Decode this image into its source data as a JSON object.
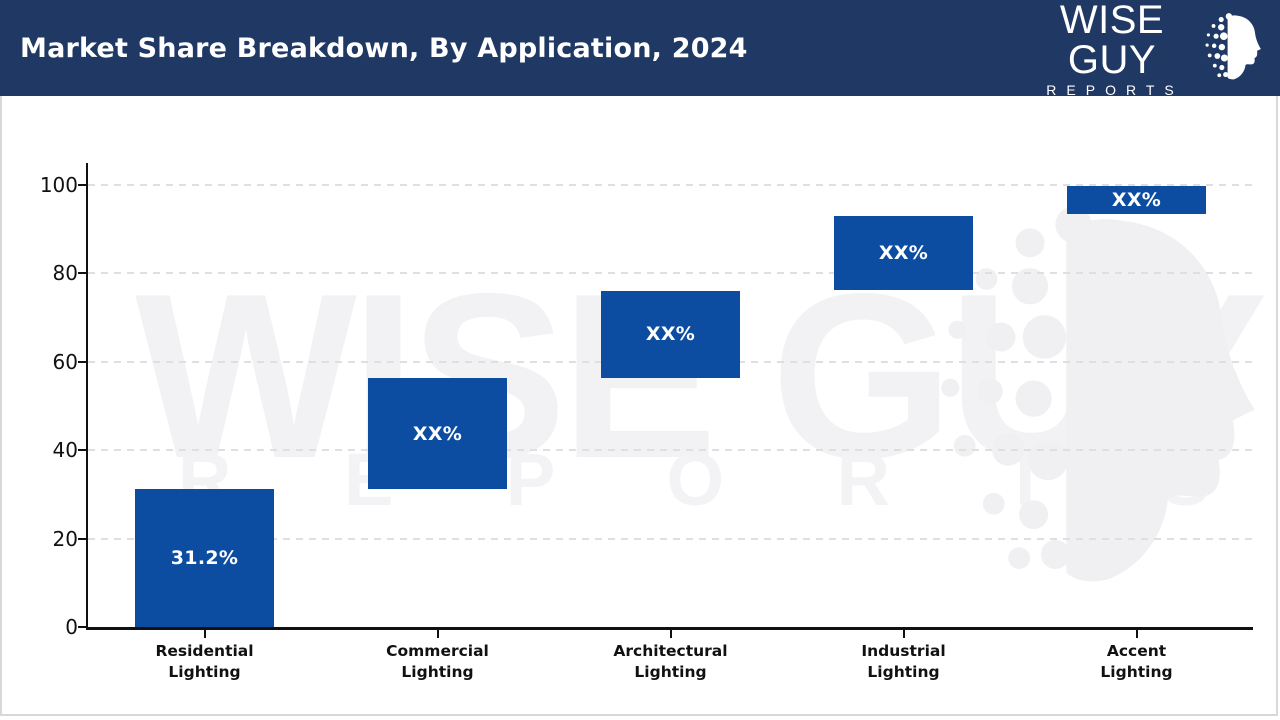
{
  "header": {
    "title": "Market Share Breakdown, By Application, 2024",
    "bg_color": "#1f3864",
    "logo": {
      "name": "WISE GUY",
      "sub": "REPORTS"
    }
  },
  "watermark": {
    "name": "WISE GUY",
    "sub": "R E P O R T S"
  },
  "chart_data": {
    "type": "bar",
    "subtype": "floating-waterfall",
    "title": "Market Share Breakdown, By Application, 2024",
    "categories": [
      "Residential Lighting",
      "Commercial Lighting",
      "Architectural Lighting",
      "Industrial Lighting",
      "Accent Lighting"
    ],
    "tick_labels": [
      "Residential\nLighting",
      "Commercial\nLighting",
      "Architectural\nLighting",
      "Industrial\nLighting",
      "Accent Lighting"
    ],
    "bars": [
      {
        "category": "Residential Lighting",
        "start": 0,
        "end": 31.2,
        "label": "31.2%"
      },
      {
        "category": "Commercial Lighting",
        "start": 31.2,
        "end": 56.3,
        "label": "XX%"
      },
      {
        "category": "Architectural Lighting",
        "start": 56.4,
        "end": 76.0,
        "label": "XX%"
      },
      {
        "category": "Industrial Lighting",
        "start": 76.2,
        "end": 93.1,
        "label": "XX%"
      },
      {
        "category": "Accent Lighting",
        "start": 93.4,
        "end": 99.8,
        "label": "XX%"
      }
    ],
    "xlabel": "",
    "ylabel": "",
    "ylim": [
      0,
      105
    ],
    "yticks": [
      0,
      20,
      40,
      60,
      80,
      100
    ],
    "grid": "horizontal-dashed",
    "legend": "none",
    "bar_color": "#0c4da2",
    "bar_label_color": "#ffffff",
    "gridline_color": "#dfdfdf",
    "axis_color": "#111111"
  }
}
